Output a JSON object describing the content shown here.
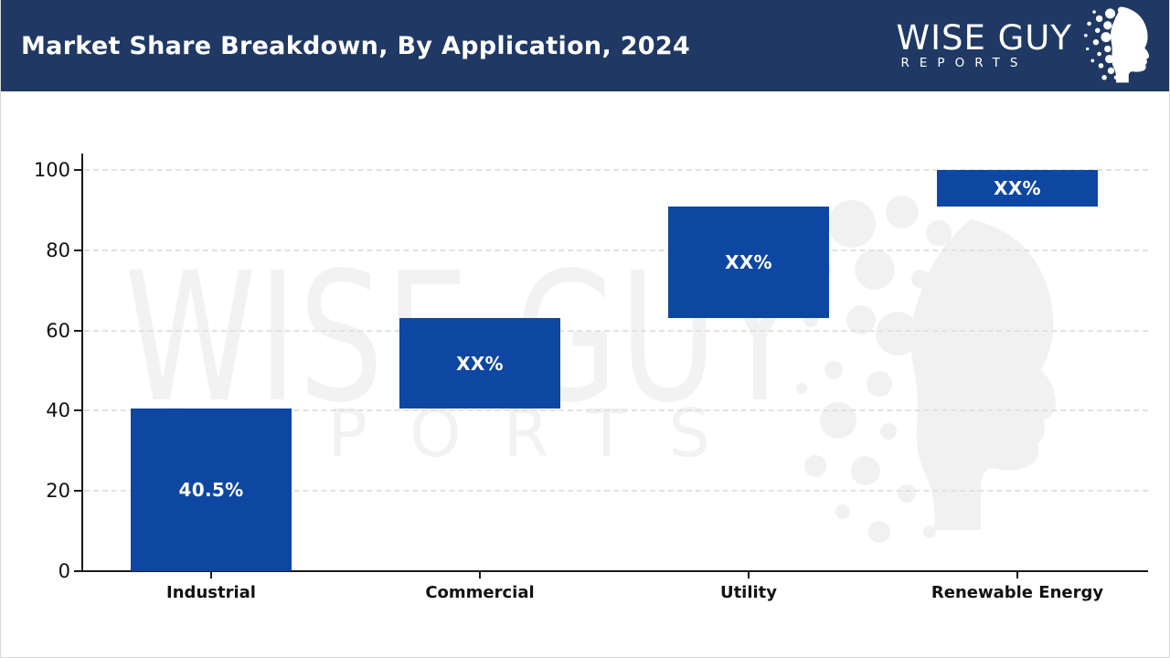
{
  "header": {
    "title": "Market Share Breakdown, By Application, 2024",
    "bg_color": "#1f3864",
    "logo": {
      "line1": "WISE GUY",
      "line2": "REPORTS"
    }
  },
  "watermark": {
    "line1": "WISE GUY",
    "line2": "REPORTS"
  },
  "chart_data": {
    "type": "bar",
    "subtype": "waterfall",
    "title": "Market Share Breakdown, By Application, 2024",
    "categories": [
      "Industrial",
      "Commercial",
      "Utility",
      "Renewable Energy"
    ],
    "segments": [
      {
        "category": "Industrial",
        "start": 0,
        "end": 40.5,
        "value": 40.5,
        "label": "40.5%"
      },
      {
        "category": "Commercial",
        "start": 40.5,
        "end": 63,
        "value": 22.5,
        "label": "XX%"
      },
      {
        "category": "Utility",
        "start": 63,
        "end": 91,
        "value": 28,
        "label": "XX%"
      },
      {
        "category": "Renewable Energy",
        "start": 91,
        "end": 100,
        "value": 9,
        "label": "XX%"
      }
    ],
    "ylim": [
      0,
      100
    ],
    "yticks": [
      0,
      20,
      40,
      60,
      80,
      100
    ],
    "xlabel": "",
    "ylabel": "",
    "bar_color": "#0d47a1",
    "grid": "horizontal-dashed",
    "gridline_color": "#e2e2e2",
    "legend": "none"
  }
}
